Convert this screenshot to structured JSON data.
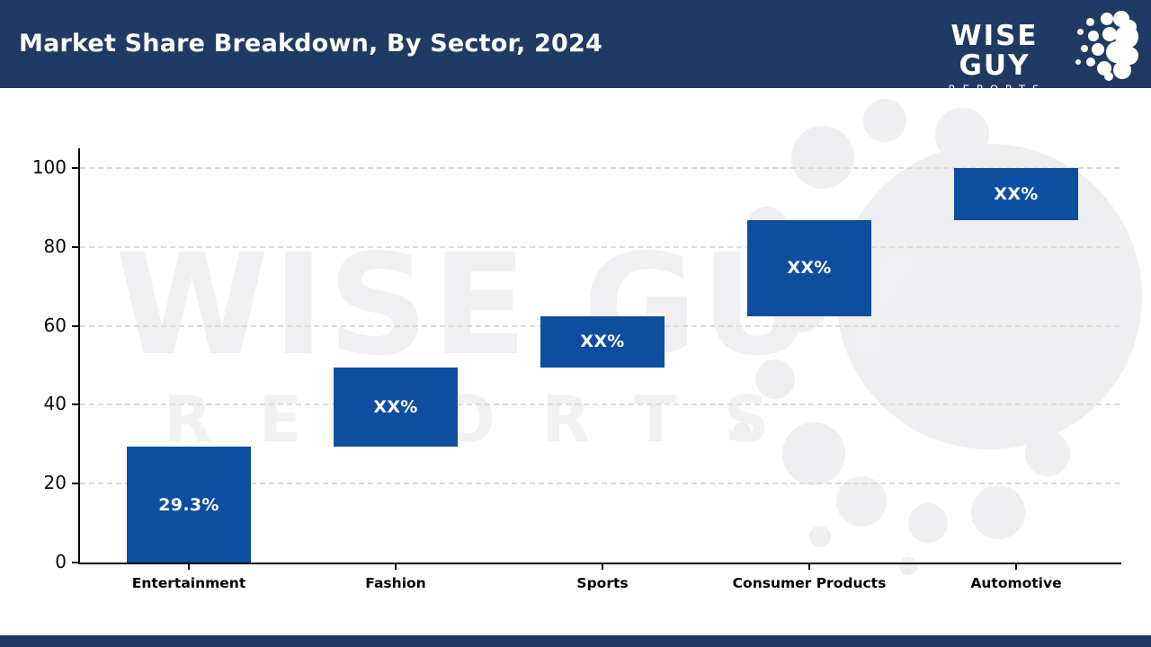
{
  "header": {
    "title": "Market Share Breakdown, By Sector, 2024",
    "brand": {
      "name_line": "WISE GUY",
      "sub_line": "REPORTS"
    }
  },
  "watermark": {
    "name_line": "WISE GUY",
    "sub_line": "REPORTS"
  },
  "colors": {
    "header_bg": "#213a64",
    "footer_bg": "#213a64",
    "bar_fill": "#0d4ea1",
    "bar_label_text": "#ffffff",
    "axis": "#000000",
    "tick_label": "#0a0a0a",
    "gridline": "#dcdcdc",
    "watermark": "#f0f0f2",
    "canvas_bg": "#ffffff"
  },
  "chart_data": {
    "type": "bar",
    "subtype": "waterfall",
    "title": "Market Share Breakdown, By Sector, 2024",
    "categories": [
      "Entertainment",
      "Fashion",
      "Sports",
      "Consumer Products",
      "Automotive"
    ],
    "series": [
      {
        "category": "Entertainment",
        "start": 0,
        "end": 29.3,
        "label": "29.3%"
      },
      {
        "category": "Fashion",
        "start": 29.3,
        "end": 49.5,
        "label": "XX%"
      },
      {
        "category": "Sports",
        "start": 49.5,
        "end": 62.4,
        "label": "XX%"
      },
      {
        "category": "Consumer Products",
        "start": 62.4,
        "end": 86.8,
        "label": "XX%"
      },
      {
        "category": "Automotive",
        "start": 86.8,
        "end": 100,
        "label": "XX%"
      }
    ],
    "yticks": [
      0,
      20,
      40,
      60,
      80,
      100
    ],
    "ylim": [
      0,
      105
    ],
    "xlabel": "",
    "ylabel": "",
    "grid": "horizontal-dashed",
    "legend_position": "none"
  }
}
